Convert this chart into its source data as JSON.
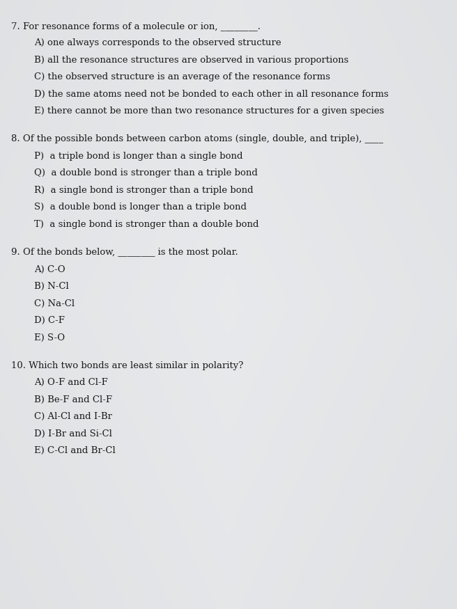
{
  "background_color": "#c8ccd4",
  "paper_color": "#e8eaed",
  "text_color": "#1a1a1a",
  "font_family": "DejaVu Serif",
  "font_size": 9.5,
  "questions": [
    {
      "number": "7.",
      "question": "For resonance forms of a molecule or ion, ________.",
      "choices": [
        "A) one always corresponds to the observed structure",
        "B) all the resonance structures are observed in various proportions",
        "C) the observed structure is an average of the resonance forms",
        "D) the same atoms need not be bonded to each other in all resonance forms",
        "E) there cannot be more than two resonance structures for a given species"
      ]
    },
    {
      "number": "8.",
      "question": "Of the possible bonds between carbon atoms (single, double, and triple), ____",
      "choices": [
        "P)  a triple bond is longer than a single bond",
        "Q)  a double bond is stronger than a triple bond",
        "R)  a single bond is stronger than a triple bond",
        "S)  a double bond is longer than a triple bond",
        "T)  a single bond is stronger than a double bond"
      ]
    },
    {
      "number": "9.",
      "question": "Of the bonds below, ________ is the most polar.",
      "choices": [
        "A) C-O",
        "B) N-Cl",
        "C) Na-Cl",
        "D) C-F",
        "E) S-O"
      ]
    },
    {
      "number": "10.",
      "question": "Which two bonds are least similar in polarity?",
      "choices": [
        "A) O-F and Cl-F",
        "B) Be-F and Cl-F",
        "C) Al-Cl and I-Br",
        "D) I-Br and Si-Cl",
        "E) C-Cl and Br-Cl"
      ]
    }
  ]
}
